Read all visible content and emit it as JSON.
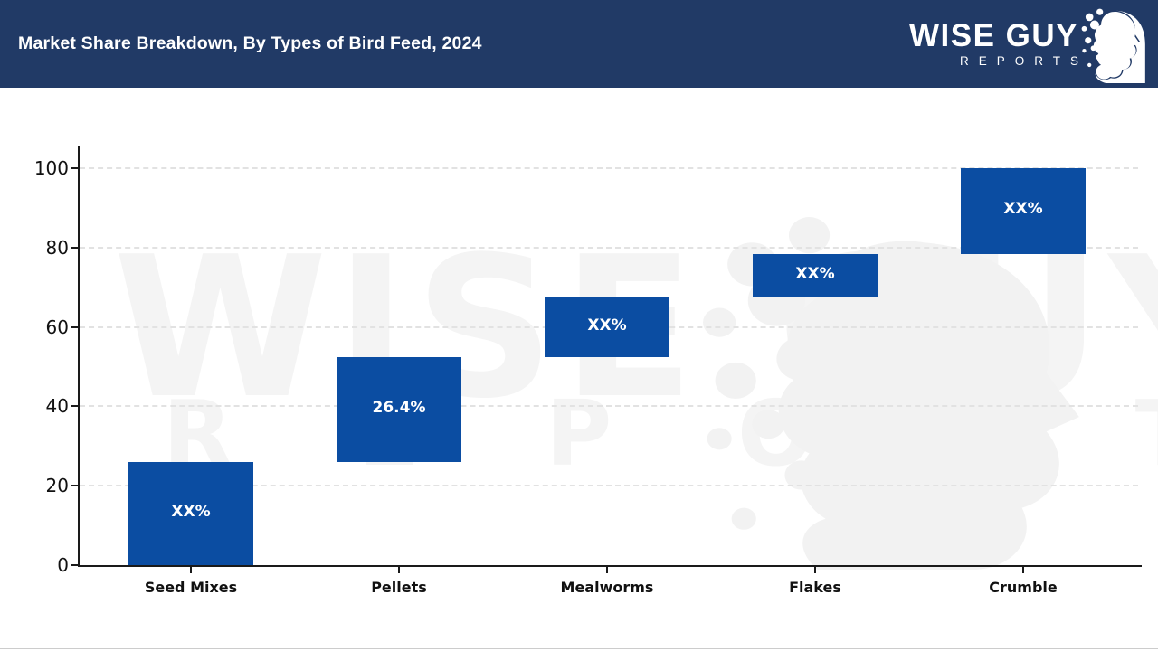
{
  "header": {
    "title": "Market Share Breakdown, By Types of Bird Feed, 2024",
    "logo": {
      "line1": "WISE GUY",
      "line2": "REPORTS"
    }
  },
  "watermark": {
    "line1": "WISE GUY",
    "line2": "R E P O R T S"
  },
  "chart_data": {
    "type": "bar",
    "variant": "floating-waterfall",
    "title": "Market Share Breakdown, By Types of Bird Feed, 2024",
    "categories": [
      "Seed Mixes",
      "Pellets",
      "Mealworms",
      "Flakes",
      "Crumble"
    ],
    "series": [
      {
        "name": "Market share (%)",
        "segments": [
          {
            "category": "Seed Mixes",
            "start": 0,
            "end": 26.0,
            "label": "XX%"
          },
          {
            "category": "Pellets",
            "start": 26.0,
            "end": 52.4,
            "label": "26.4%"
          },
          {
            "category": "Mealworms",
            "start": 52.4,
            "end": 67.4,
            "label": "XX%"
          },
          {
            "category": "Flakes",
            "start": 67.4,
            "end": 78.4,
            "label": "XX%"
          },
          {
            "category": "Crumble",
            "start": 78.4,
            "end": 100.0,
            "label": "XX%"
          }
        ]
      }
    ],
    "xlabel": "",
    "ylabel": "",
    "ylim": [
      0,
      100
    ],
    "yticks": [
      0,
      20,
      40,
      60,
      80,
      100
    ],
    "grid": "horizontal-dashed",
    "legend": "none",
    "colors": {
      "bar": "#0B4DA2",
      "bar_label": "#FFFFFF",
      "axis": "#1A1A1A",
      "gridline": "#E2E2E2",
      "header_bg": "#213A66",
      "header_text": "#FFFFFF",
      "watermark": "#F2F2F2"
    }
  }
}
